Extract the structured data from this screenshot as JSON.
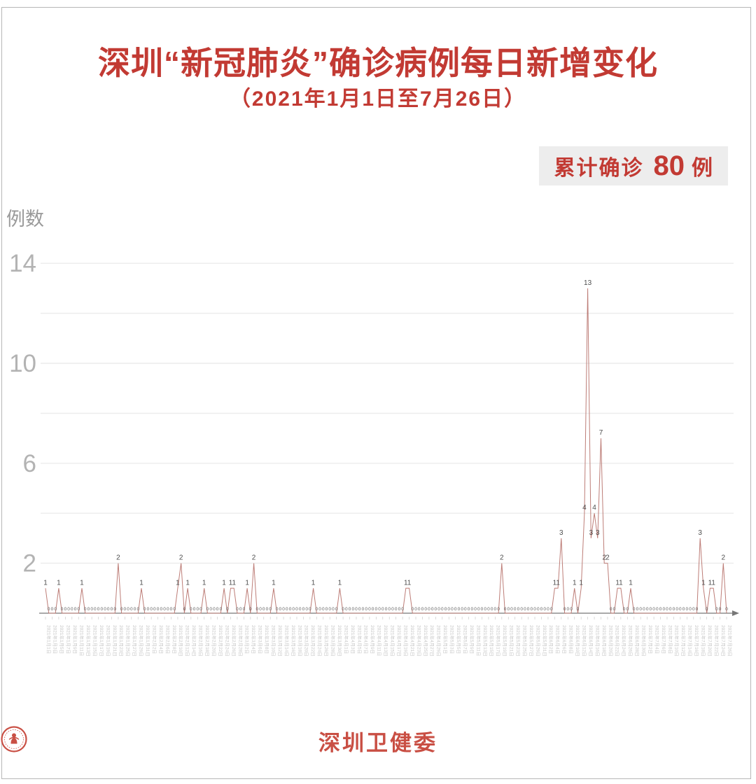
{
  "header": {
    "title": "深圳“新冠肺炎”确诊病例每日新增变化",
    "subtitle": "（2021年1月1日至7月26日）"
  },
  "summary_badge": {
    "label": "累计确诊",
    "value": "80",
    "unit": "例"
  },
  "footer": {
    "org": "深圳卫健委"
  },
  "colors": {
    "accent": "#c23a33",
    "footer_red": "#c94f44",
    "badge_bg": "#ededed",
    "line": "#bd7d77",
    "grid": "#ececec",
    "axis": "#777777",
    "ytick_text": "#b3b3b3",
    "ylabel_text": "#9a9a9a",
    "value_label": "#4d4d4d",
    "zero_label": "#5a5a5a",
    "date_label": "#c6c6c6",
    "day_tick": "#cccccc"
  },
  "chart_data": {
    "type": "line",
    "title": "深圳新冠肺炎确诊病例每日新增变化",
    "ylabel": "例数",
    "xlabel": "",
    "ylim": [
      0,
      14
    ],
    "yticks_labeled": [
      2,
      6,
      10,
      14
    ],
    "ygrid_step": 2,
    "grid": true,
    "legend": false,
    "start_date": "2021-01-01",
    "end_date": "2021-07-26",
    "n_days": 207,
    "x_label_every": 2,
    "x_label_format": "2021年M月D日",
    "total_cases": 80,
    "values": [
      1,
      0,
      0,
      0,
      1,
      0,
      0,
      0,
      0,
      0,
      0,
      1,
      0,
      0,
      0,
      0,
      0,
      0,
      0,
      0,
      0,
      0,
      2,
      0,
      0,
      0,
      0,
      0,
      0,
      1,
      0,
      0,
      0,
      0,
      0,
      0,
      0,
      0,
      0,
      0,
      1,
      2,
      0,
      1,
      0,
      0,
      0,
      0,
      1,
      0,
      0,
      0,
      0,
      0,
      1,
      0,
      1,
      1,
      0,
      0,
      0,
      1,
      0,
      2,
      0,
      0,
      0,
      0,
      0,
      1,
      0,
      0,
      0,
      0,
      0,
      0,
      0,
      0,
      0,
      0,
      0,
      1,
      0,
      0,
      0,
      0,
      0,
      0,
      0,
      1,
      0,
      0,
      0,
      0,
      0,
      0,
      0,
      0,
      0,
      0,
      0,
      0,
      0,
      0,
      0,
      0,
      0,
      0,
      0,
      1,
      1,
      0,
      0,
      0,
      0,
      0,
      0,
      0,
      0,
      0,
      0,
      0,
      0,
      0,
      0,
      0,
      0,
      0,
      0,
      0,
      0,
      0,
      0,
      0,
      0,
      0,
      0,
      0,
      2,
      0,
      0,
      0,
      0,
      0,
      0,
      0,
      0,
      0,
      0,
      0,
      0,
      0,
      0,
      0,
      1,
      1,
      3,
      0,
      0,
      0,
      1,
      0,
      1,
      4,
      13,
      3,
      4,
      3,
      7,
      2,
      2,
      0,
      0,
      1,
      1,
      0,
      0,
      1,
      0,
      0,
      0,
      0,
      0,
      0,
      0,
      0,
      0,
      0,
      0,
      0,
      0,
      0,
      0,
      0,
      0,
      0,
      0,
      0,
      3,
      1,
      0,
      1,
      1,
      0,
      0,
      2,
      0
    ]
  }
}
